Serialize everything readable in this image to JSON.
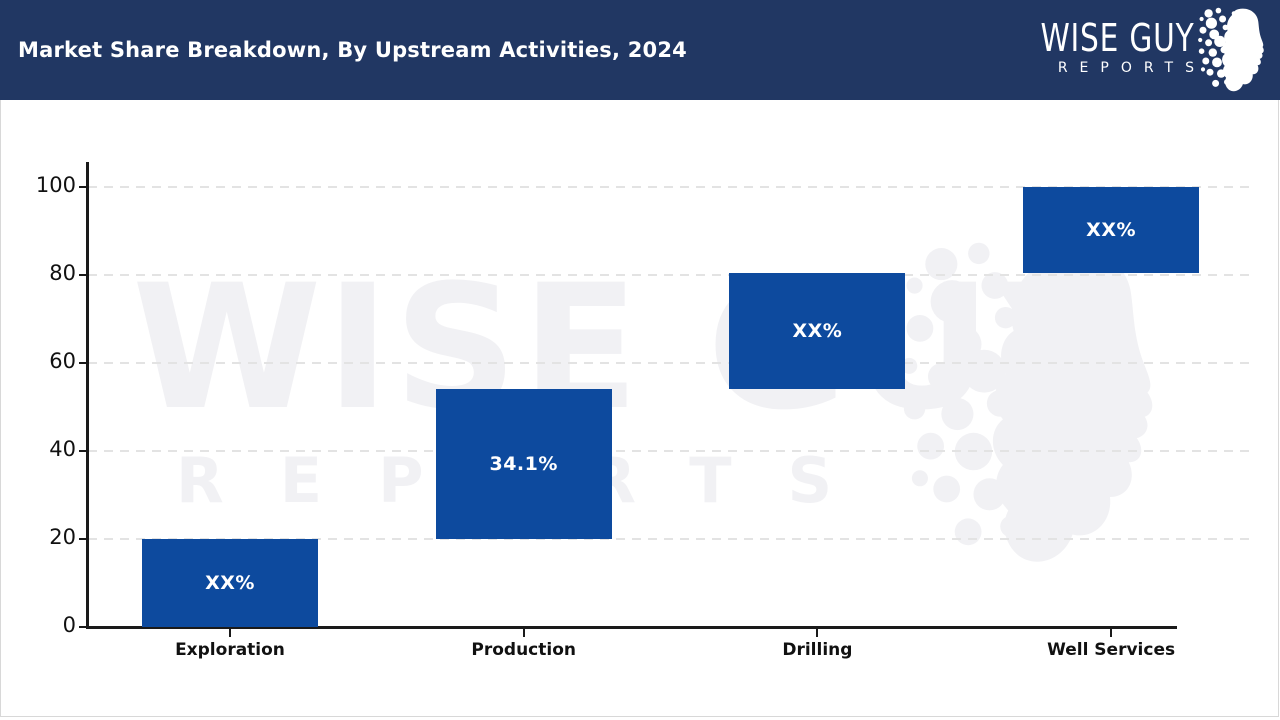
{
  "header": {
    "title": "Market Share Breakdown, By Upstream Activities, 2024",
    "logo": {
      "line1": "WISE GUY",
      "line2": "REPORTS"
    }
  },
  "watermark": {
    "line1": "WISE GUY",
    "line2": "REPORTS"
  },
  "chart_data": {
    "type": "bar",
    "subtype": "floating-segment-waterfall",
    "title": "Market Share Breakdown, By Upstream Activities, 2024",
    "categories": [
      "Exploration",
      "Production",
      "Drilling",
      "Well Services"
    ],
    "bars": [
      {
        "category": "Exploration",
        "start": 0,
        "end": 20,
        "label": "XX%"
      },
      {
        "category": "Production",
        "start": 20,
        "end": 54.1,
        "label": "34.1%"
      },
      {
        "category": "Drilling",
        "start": 54.1,
        "end": 80.5,
        "label": "XX%"
      },
      {
        "category": "Well Services",
        "start": 80.5,
        "end": 100,
        "label": "XX%"
      }
    ],
    "ylim": [
      0,
      100
    ],
    "yticks": [
      0,
      20,
      40,
      60,
      80,
      100
    ],
    "xlabel": "",
    "ylabel": "",
    "grid": "horizontal-dashed",
    "legend": "none"
  },
  "colors": {
    "header_bg": "#213763",
    "bar": "#0d4a9e",
    "bar_label": "#ffffff",
    "watermark": "#f1f1f4",
    "axis": "#1a1a1a",
    "grid": "#e3e3e3"
  }
}
